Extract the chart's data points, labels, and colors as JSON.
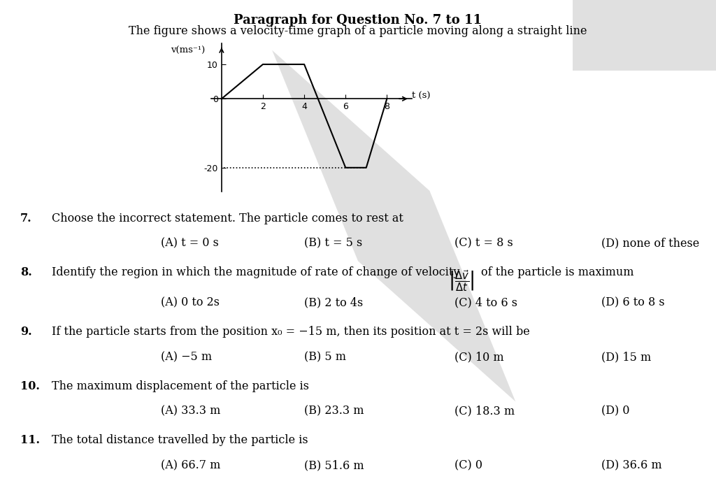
{
  "title": "Paragraph for Question No. 7 to 11",
  "subtitle": "The figure shows a velocity-time graph of a particle moving along a straight line",
  "graph": {
    "t_points": [
      0,
      2,
      4,
      6,
      7,
      8
    ],
    "v_points": [
      0,
      10,
      10,
      -20,
      -20,
      0
    ],
    "xlabel": "t (s)",
    "ylabel": "v(ms⁻¹)",
    "xticks": [
      2,
      4,
      6,
      8
    ],
    "yticks": [
      -20,
      0,
      10
    ],
    "xlim": [
      -0.5,
      9.2
    ],
    "ylim": [
      -27,
      16
    ],
    "dotted_y": -20,
    "dotted_x_start": 0.1,
    "dotted_x_end": 7.0
  },
  "questions": [
    {
      "number": "7.",
      "text": "Choose the incorrect statement. The particle comes to rest at",
      "options": [
        "(A) t = 0 s",
        "(B) t = 5 s",
        "(C) t = 8 s",
        "(D) none of these"
      ]
    },
    {
      "number": "8.",
      "text": "Identify the region in which the magnitude of rate of change of velocity",
      "text2": "of the particle is maximum",
      "options": [
        "(A) 0 to 2s",
        "(B) 2 to 4s",
        "(C) 4 to 6 s",
        "(D) 6 to 8 s"
      ]
    },
    {
      "number": "9.",
      "text": "If the particle starts from the position x₀ = −15 m, then its position at t = 2s will be",
      "options": [
        "(A) −5 m",
        "(B) 5 m",
        "(C) 10 m",
        "(D) 15 m"
      ]
    },
    {
      "number": "10.",
      "text": "The maximum displacement of the particle is",
      "options": [
        "(A) 33.3 m",
        "(B) 23.3 m",
        "(C) 18.3 m",
        "(D) 0"
      ]
    },
    {
      "number": "11.",
      "text": "The total distance travelled by the particle is",
      "options": [
        "(A) 66.7 m",
        "(B) 51.6 m",
        "(C) 0",
        "(D) 36.6 m"
      ]
    }
  ],
  "watermark_poly": [
    [
      0.38,
      0.9
    ],
    [
      0.6,
      0.62
    ],
    [
      0.72,
      0.2
    ],
    [
      0.5,
      0.48
    ]
  ],
  "watermark_rect": [
    [
      0.8,
      0.86
    ],
    [
      1.0,
      0.86
    ],
    [
      1.0,
      1.0
    ],
    [
      0.8,
      1.0
    ]
  ],
  "background_color": "#ffffff"
}
